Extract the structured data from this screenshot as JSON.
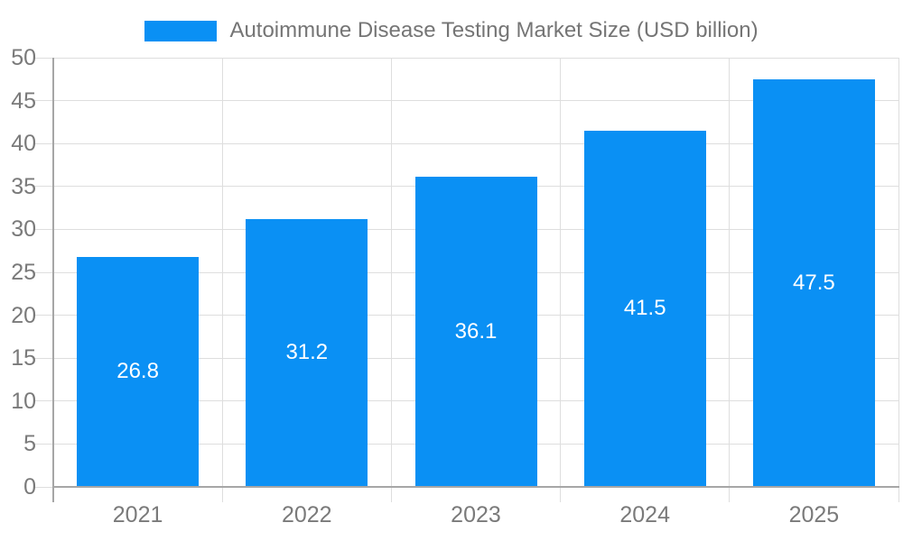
{
  "chart_data": {
    "type": "bar",
    "title": "Autoimmune Disease Testing Market Size (USD billion)",
    "legend": {
      "position": "top",
      "label": "Autoimmune Disease Testing Market Size (USD billion)"
    },
    "categories": [
      "2021",
      "2022",
      "2023",
      "2024",
      "2025"
    ],
    "values": [
      26.8,
      31.2,
      36.1,
      41.5,
      47.5
    ],
    "xlabel": "",
    "ylabel": "",
    "ylim": [
      0,
      50
    ],
    "ytick_step": 5,
    "ytick_labels": [
      "0",
      "5",
      "10",
      "15",
      "20",
      "25",
      "30",
      "35",
      "40",
      "45",
      "50"
    ],
    "grid": true,
    "bar_color": "#0A90F4",
    "value_label_color": "#FFFFFF",
    "axis_color": "#A6A6A6",
    "grid_color": "#DEDEDE",
    "text_color": "#7A7A7A"
  }
}
